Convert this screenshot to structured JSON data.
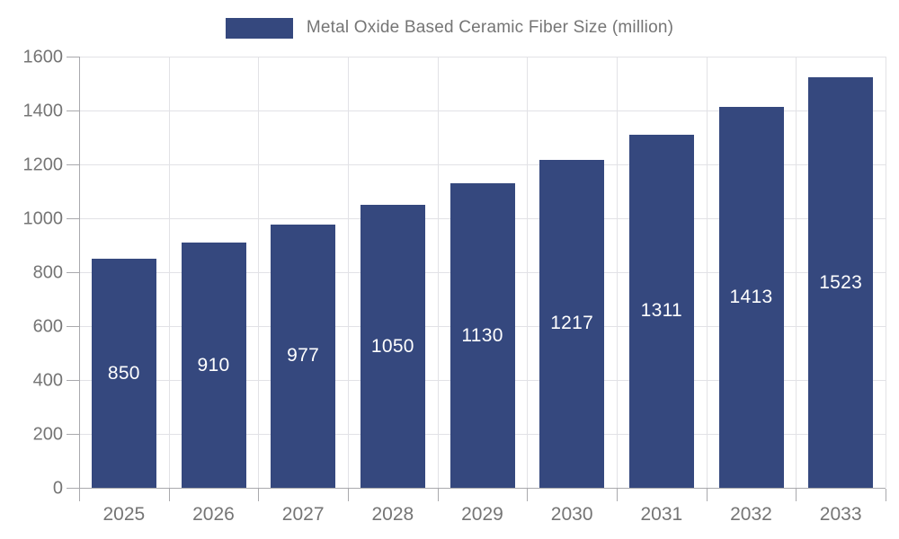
{
  "legend": {
    "label": "Metal Oxide Based Ceramic Fiber Size (million)"
  },
  "colors": {
    "bar": "#35487e",
    "grid": "#e2e2e6",
    "axis": "#a9a9ad",
    "tick_text": "#757575",
    "value_label": "#ffffff",
    "background": "#ffffff"
  },
  "chart_data": {
    "type": "bar",
    "title": "Metal Oxide Based Ceramic Fiber Size (million)",
    "categories": [
      "2025",
      "2026",
      "2027",
      "2028",
      "2029",
      "2030",
      "2031",
      "2032",
      "2033"
    ],
    "values": [
      850,
      910,
      977,
      1050,
      1130,
      1217,
      1311,
      1413,
      1523
    ],
    "xlabel": "",
    "ylabel": "",
    "ylim": [
      0,
      1600
    ],
    "ytick_step": 200,
    "yticks": [
      0,
      200,
      400,
      600,
      800,
      1000,
      1200,
      1400,
      1600
    ],
    "grid": true,
    "legend_position": "top",
    "bar_value_labels": "inside-center"
  }
}
